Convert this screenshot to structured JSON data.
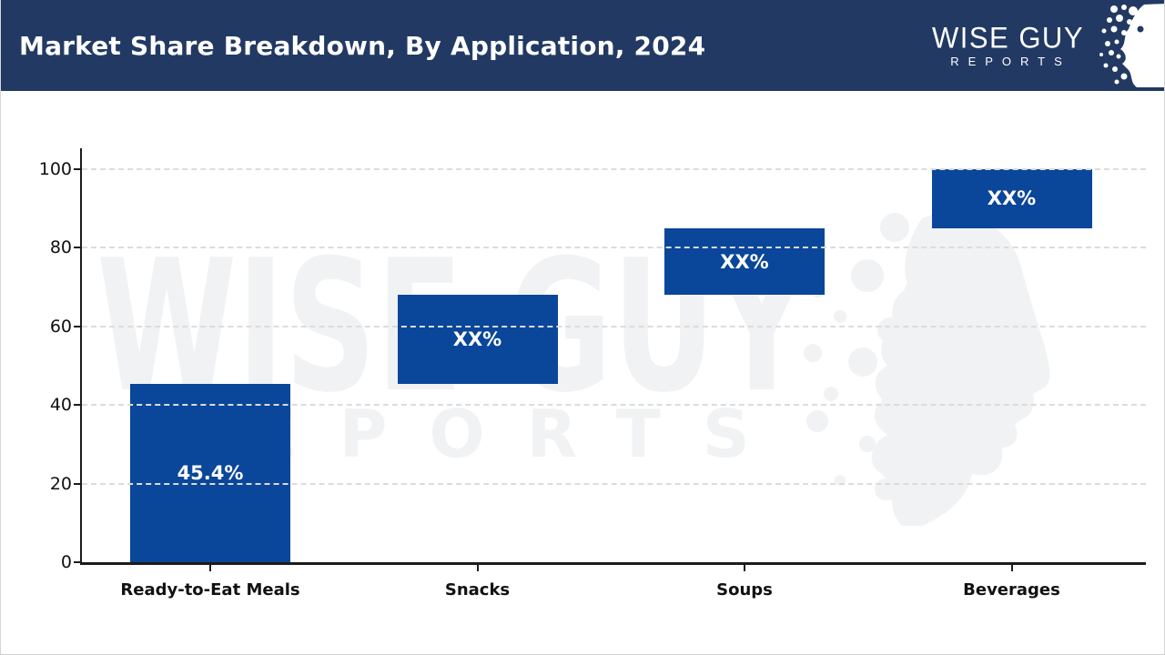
{
  "header": {
    "title": "Market Share Breakdown, By Application, 2024",
    "logo": {
      "line1": "WISE GUY",
      "line2": "REPORTS"
    }
  },
  "watermark": {
    "line1": "WISE GUY",
    "line2": "REPORTS"
  },
  "colors": {
    "header_bg": "#223a63",
    "bar_blue": "#0a4699",
    "grid": "#dcdcdc",
    "axis": "#1c1c1c",
    "watermark_gray": "#f1f2f4"
  },
  "chart_data": {
    "type": "bar",
    "subtype": "waterfall",
    "title": "Market Share Breakdown, By Application, 2024",
    "categories": [
      "Ready-to-Eat Meals",
      "Snacks",
      "Soups",
      "Beverages"
    ],
    "segments": [
      {
        "category": "Ready-to-Eat Meals",
        "start": 0,
        "end": 45.4,
        "label": "45.4%"
      },
      {
        "category": "Snacks",
        "start": 45.4,
        "end": 68,
        "label": "XX%"
      },
      {
        "category": "Soups",
        "start": 68,
        "end": 85,
        "label": "XX%"
      },
      {
        "category": "Beverages",
        "start": 85,
        "end": 100,
        "label": "XX%"
      }
    ],
    "ylim": [
      0,
      100
    ],
    "yticks": [
      0,
      20,
      40,
      60,
      80,
      100
    ],
    "xlabel": "",
    "ylabel": "",
    "grid": "horizontal-dashed",
    "legend": "none"
  }
}
